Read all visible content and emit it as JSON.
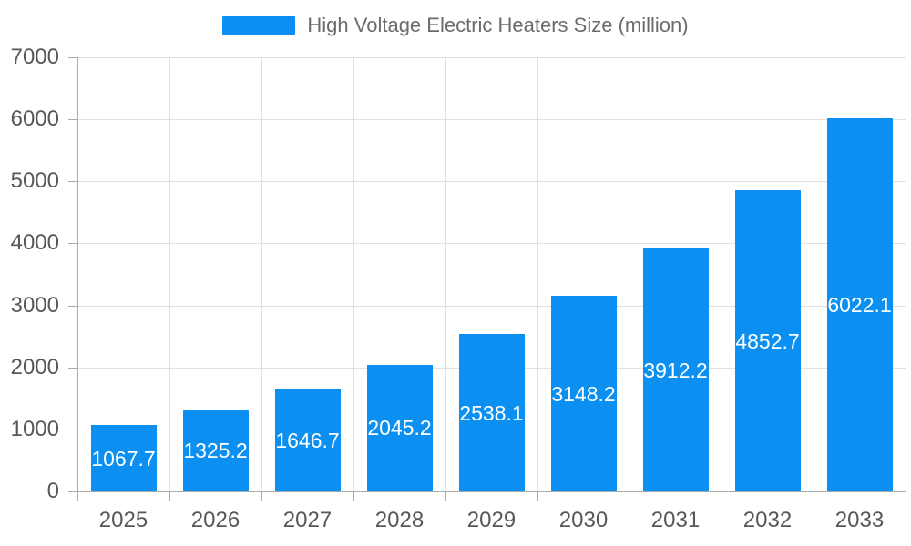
{
  "legend": {
    "label": "High Voltage Electric Heaters Size (million)"
  },
  "colors": {
    "bar": "#0b90f2",
    "grid": "#e0e0e0",
    "axis": "#ababab",
    "tick_label": "#58585a",
    "legend_text": "#6b6b6b",
    "bar_label": "#ffffff",
    "background": "#ffffff"
  },
  "chart_data": {
    "type": "bar",
    "title": "High Voltage Electric Heaters Size (million)",
    "categories": [
      "2025",
      "2026",
      "2027",
      "2028",
      "2029",
      "2030",
      "2031",
      "2032",
      "2033"
    ],
    "values": [
      1067.7,
      1325.2,
      1646.7,
      2045.2,
      2538.1,
      3148.2,
      3912.2,
      4852.7,
      6022.1
    ],
    "xlabel": "",
    "ylabel": "",
    "ylim": [
      0,
      7000
    ],
    "ytick_step": 1000,
    "ytick_labels": [
      "0",
      "1000",
      "2000",
      "3000",
      "4000",
      "5000",
      "6000",
      "7000"
    ],
    "grid": true,
    "legend_position": "top",
    "value_labels": "inside-middle"
  }
}
